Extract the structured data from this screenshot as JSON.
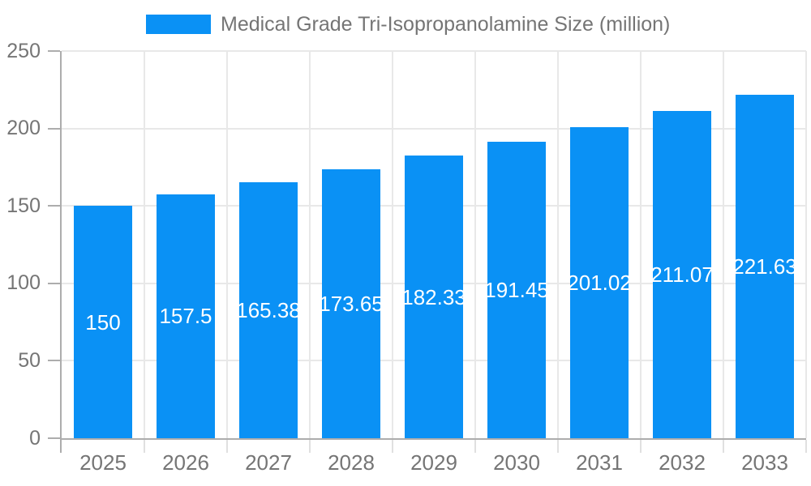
{
  "legend": {
    "label": "Medical Grade Tri-Isopropanolamine Size (million)"
  },
  "colors": {
    "background": "#ffffff",
    "bar": "#0a91f5",
    "bar_label": "#ffffff",
    "axis": "#adadad",
    "grid": "#e8e8e8",
    "x_tick": "#e0e0e0",
    "label": "#757575"
  },
  "chart_data": {
    "type": "bar",
    "title": "Medical Grade Tri-Isopropanolamine Size (million)",
    "xlabel": "",
    "ylabel": "",
    "categories": [
      "2025",
      "2026",
      "2027",
      "2028",
      "2029",
      "2030",
      "2031",
      "2032",
      "2033"
    ],
    "values": [
      150,
      157.5,
      165.38,
      173.65,
      182.33,
      191.45,
      201.02,
      211.07,
      221.63
    ],
    "value_labels": [
      "150",
      "157.5",
      "165.38",
      "173.65",
      "182.33",
      "191.45",
      "201.02",
      "211.07",
      "221.63"
    ],
    "ylim": [
      0,
      250
    ],
    "yticks": [
      0,
      50,
      100,
      150,
      200,
      250
    ],
    "grid": true,
    "legend_position": "top"
  }
}
